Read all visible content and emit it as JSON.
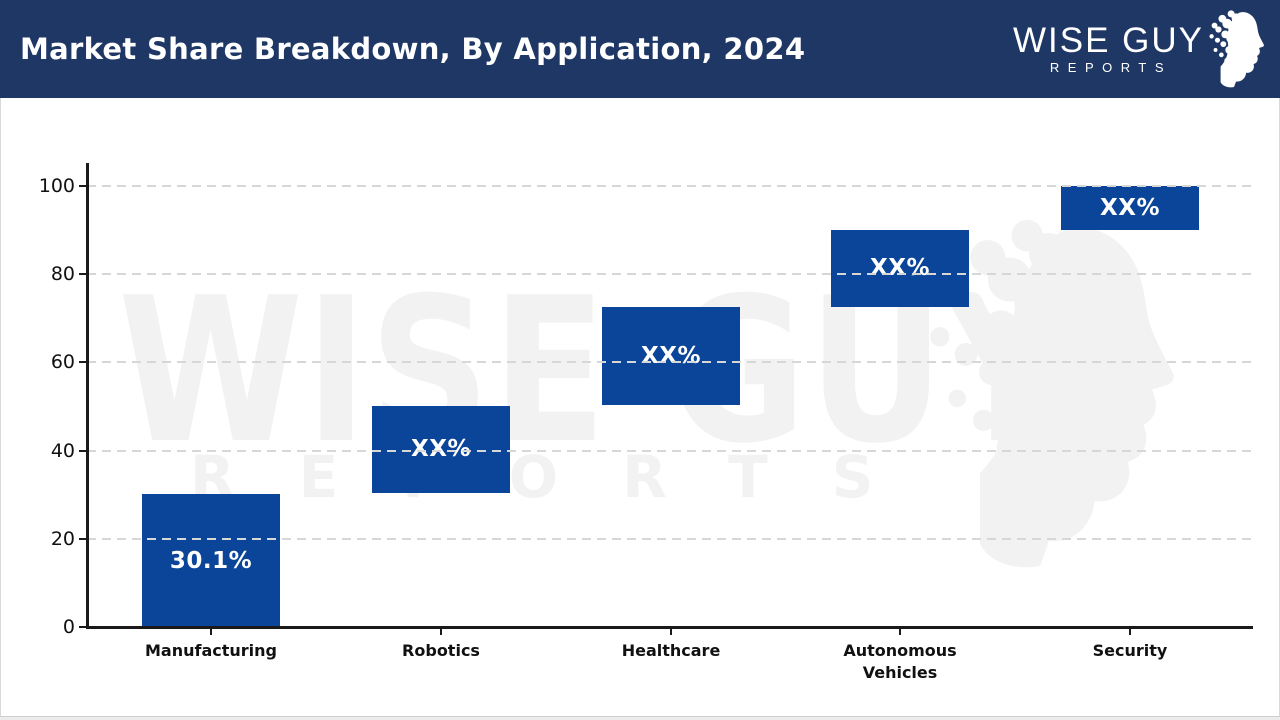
{
  "header": {
    "title": "Market Share Breakdown, By Application, 2024",
    "logo": {
      "name": "WISE GUY",
      "subtitle": "REPORTS"
    }
  },
  "watermark": {
    "line1": "WISE GUY",
    "line2": "REPORTS"
  },
  "chart_data": {
    "type": "bar",
    "subtype": "waterfall",
    "title": "Market Share Breakdown, By Application, 2024",
    "categories": [
      "Manufacturing",
      "Robotics",
      "Healthcare",
      "Autonomous Vehicles",
      "Security"
    ],
    "segments": [
      {
        "category": "Manufacturing",
        "start": 0,
        "end": 30.1,
        "value_label": "30.1%"
      },
      {
        "category": "Robotics",
        "start": 30.4,
        "end": 50.1,
        "value_label": "XX%"
      },
      {
        "category": "Healthcare",
        "start": 50.4,
        "end": 72.5,
        "value_label": "XX%"
      },
      {
        "category": "Autonomous Vehicles",
        "start": 72.6,
        "end": 90.0,
        "value_label": "XX%"
      },
      {
        "category": "Security",
        "start": 90.0,
        "end": 100.0,
        "value_label": "XX%"
      }
    ],
    "yticks": [
      0,
      20,
      40,
      60,
      80,
      100
    ],
    "ylim": [
      0,
      105
    ],
    "xlabel": "",
    "ylabel": "",
    "grid": "dashed-horizontal",
    "legend": "none",
    "bar_color": "#0a4599",
    "value_label_color": "#ffffff"
  },
  "colors": {
    "header_bg": "#1f3765",
    "bar": "#0a4599",
    "grid": "#d7d7d7",
    "axis": "#1a1a1a",
    "watermark": "#f2f2f2",
    "footer": "#ececec"
  }
}
